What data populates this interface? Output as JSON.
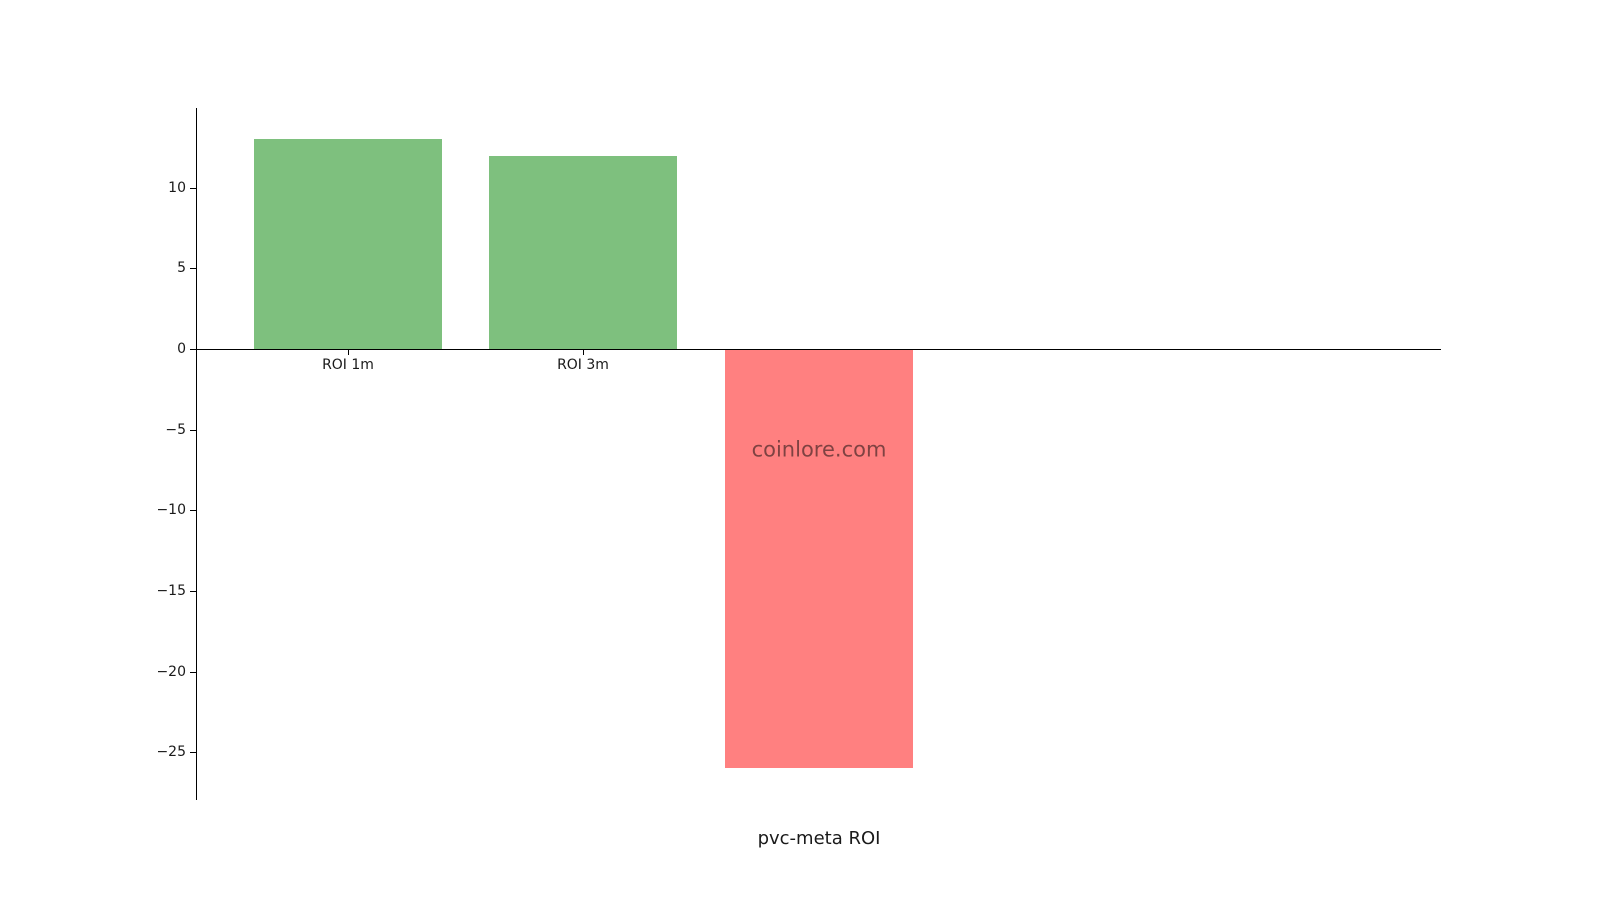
{
  "watermark": {
    "text": "coinlore.com"
  },
  "chart_data": {
    "type": "bar",
    "title": "",
    "xlabel": "pvc-meta ROI",
    "ylabel": "",
    "categories": [
      "ROI 1m",
      "ROI 3m",
      ""
    ],
    "values": [
      13,
      12,
      -26
    ],
    "bar_colors": [
      "#7ec07e",
      "#7ec07e",
      "#ff8080"
    ],
    "positive_color": "#7ec07e",
    "negative_color": "#ff8080",
    "x_positions": [
      0,
      1,
      2
    ],
    "xlim": [
      -0.64,
      4.64
    ],
    "bar_width": 0.8,
    "ylim": [
      -27.95,
      14.95
    ],
    "yticks": [
      10,
      5,
      0,
      -5,
      -10,
      -15,
      -20,
      -25
    ],
    "grid": false,
    "legend_position": "none",
    "axis_color": "#000000"
  }
}
